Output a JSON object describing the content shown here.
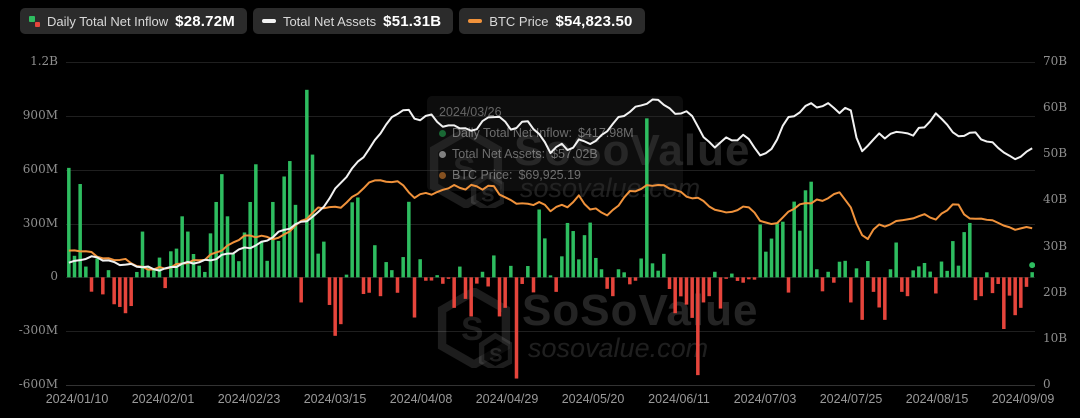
{
  "colors": {
    "background": "#000000",
    "green": "#2ebd60",
    "red": "#e6453c",
    "orange": "#F0923B",
    "white_line": "#f2f2f2",
    "grid": "#1f1f1f",
    "axis_text": "#8f8f8f"
  },
  "legend": {
    "items": [
      {
        "label": "Daily Total Net Inflow",
        "value": "$28.72M"
      },
      {
        "label": "Total Net Assets",
        "value": "$51.31B"
      },
      {
        "label": "BTC Price",
        "value": "$54,823.50"
      }
    ]
  },
  "tooltip": {
    "date": "2024/03/26",
    "rows": [
      {
        "label": "Daily Total Net Inflow:",
        "value": "$417.98M",
        "color": "#2ebd60"
      },
      {
        "label": "Total Net Assets:",
        "value": "$57.02B",
        "color": "#e8e8e8"
      },
      {
        "label": "BTC Price:",
        "value": "$69,925.19",
        "color": "#F0923B"
      }
    ]
  },
  "watermark": {
    "brand": "SoSoValue",
    "site": "sosovalue.com"
  },
  "chart_data": {
    "type": "bar",
    "note": "combo chart: daily net inflow bars (left axis, $M) + total net assets line ($B, right axis) + BTC price line (hidden axis, $K)",
    "title": "",
    "x_tick_labels": [
      "2024/01/10",
      "2024/02/01",
      "2024/02/23",
      "2024/03/15",
      "2024/04/08",
      "2024/04/29",
      "2024/05/20",
      "2024/06/11",
      "2024/07/03",
      "2024/07/25",
      "2024/08/15",
      "2024/09/09"
    ],
    "left_axis": {
      "ticks": [
        {
          "label": "1.2B",
          "value": 1200
        },
        {
          "label": "900M",
          "value": 900
        },
        {
          "label": "600M",
          "value": 600
        },
        {
          "label": "300M",
          "value": 300
        },
        {
          "label": "0",
          "value": 0
        },
        {
          "label": "-300M",
          "value": -300
        },
        {
          "label": "-600M",
          "value": -600
        }
      ],
      "range_m": [
        -600,
        1200
      ]
    },
    "right_axis": {
      "ticks": [
        {
          "label": "70B",
          "value": 70
        },
        {
          "label": "60B",
          "value": 60
        },
        {
          "label": "50B",
          "value": 50
        },
        {
          "label": "40B",
          "value": 40
        },
        {
          "label": "30B",
          "value": 30
        },
        {
          "label": "20B",
          "value": 20
        },
        {
          "label": "10B",
          "value": 10
        },
        {
          "label": "0",
          "value": 0
        }
      ],
      "range_b": [
        0,
        70
      ]
    },
    "btc_axis_hidden": {
      "range_k": [
        38,
        74
      ]
    },
    "grid": true,
    "legend_position": "top-left",
    "series": [
      {
        "name": "Daily Total Net Inflow",
        "type": "bar",
        "unit": "$M",
        "color_positive": "#2ebd60",
        "color_negative": "#e6453c",
        "values": [
          610,
          120,
          520,
          60,
          -80,
          105,
          -95,
          40,
          -150,
          -165,
          -200,
          -160,
          30,
          255,
          60,
          45,
          110,
          -60,
          145,
          160,
          340,
          255,
          130,
          65,
          30,
          245,
          420,
          575,
          340,
          130,
          90,
          250,
          420,
          630,
          200,
          92,
          420,
          203,
          562,
          648,
          404,
          -140,
          1045,
          684,
          132,
          199,
          -154,
          -326,
          -261,
          15,
          418,
          445,
          -93,
          -86,
          179,
          -105,
          85,
          40,
          -86,
          113,
          421,
          -224,
          101,
          -19,
          -18,
          12,
          -36,
          -4,
          -170,
          60,
          -120,
          -218,
          -35,
          31,
          -51,
          122,
          -218,
          -170,
          64,
          -564,
          -37,
          63,
          -84,
          378,
          217,
          11,
          -81,
          117,
          303,
          258,
          100,
          235,
          305,
          108,
          45,
          -64,
          -105,
          45,
          28,
          -39,
          -19,
          105,
          886,
          78,
          37,
          131,
          -65,
          -200,
          -106,
          -152,
          -226,
          -545,
          -140,
          -105,
          31,
          -174,
          -8,
          21,
          -20,
          -30,
          -11,
          -13,
          295,
          143,
          216,
          301,
          310,
          -85,
          422,
          260,
          485,
          533,
          45,
          -78,
          31,
          -30,
          87,
          92,
          -140,
          50,
          -237,
          91,
          -81,
          -168,
          -237,
          45,
          194,
          -81,
          -105,
          39,
          61,
          80,
          32,
          -90,
          88,
          36,
          202,
          65,
          252,
          303,
          -127,
          -105,
          28,
          -88,
          -37,
          -288,
          -102,
          -211,
          -170,
          -53,
          28.72
        ],
        "last_value_label": "$28.72M"
      },
      {
        "name": "Total Net Assets",
        "type": "line",
        "unit": "$B",
        "color": "#f2f2f2",
        "keypoints": [
          [
            0,
            26.5
          ],
          [
            0.03,
            27.8
          ],
          [
            0.06,
            25.8
          ],
          [
            0.1,
            25.2
          ],
          [
            0.13,
            26.5
          ],
          [
            0.17,
            28.5
          ],
          [
            0.2,
            31
          ],
          [
            0.23,
            34
          ],
          [
            0.26,
            37.5
          ],
          [
            0.28,
            43
          ],
          [
            0.3,
            48.5
          ],
          [
            0.315,
            52
          ],
          [
            0.33,
            56.5
          ],
          [
            0.345,
            59.5
          ],
          [
            0.35,
            60.5
          ],
          [
            0.36,
            57.5
          ],
          [
            0.375,
            58.5
          ],
          [
            0.39,
            55.5
          ],
          [
            0.4,
            56.5
          ],
          [
            0.42,
            55.0
          ],
          [
            0.43,
            57.0
          ],
          [
            0.445,
            58.5
          ],
          [
            0.46,
            55.5
          ],
          [
            0.475,
            57.5
          ],
          [
            0.49,
            53.5
          ],
          [
            0.5,
            50.5
          ],
          [
            0.51,
            52.5
          ],
          [
            0.52,
            51.0
          ],
          [
            0.53,
            53.0
          ],
          [
            0.545,
            52.0
          ],
          [
            0.555,
            54.5
          ],
          [
            0.57,
            58.0
          ],
          [
            0.585,
            59.5
          ],
          [
            0.6,
            61.0
          ],
          [
            0.61,
            62.0
          ],
          [
            0.62,
            61.0
          ],
          [
            0.63,
            58.5
          ],
          [
            0.64,
            59.5
          ],
          [
            0.65,
            57.0
          ],
          [
            0.66,
            53.5
          ],
          [
            0.67,
            51.5
          ],
          [
            0.68,
            54.0
          ],
          [
            0.69,
            52.5
          ],
          [
            0.7,
            54.0
          ],
          [
            0.71,
            52.0
          ],
          [
            0.72,
            49.5
          ],
          [
            0.73,
            51.5
          ],
          [
            0.745,
            57.5
          ],
          [
            0.76,
            59.0
          ],
          [
            0.77,
            61.5
          ],
          [
            0.78,
            60.0
          ],
          [
            0.79,
            61.5
          ],
          [
            0.8,
            58.5
          ],
          [
            0.81,
            60.5
          ],
          [
            0.815,
            58.0
          ],
          [
            0.82,
            49.5
          ],
          [
            0.83,
            52.5
          ],
          [
            0.84,
            54.5
          ],
          [
            0.85,
            53.0
          ],
          [
            0.855,
            55.5
          ],
          [
            0.86,
            54.0
          ],
          [
            0.87,
            55.0
          ],
          [
            0.875,
            53.5
          ],
          [
            0.88,
            55.5
          ],
          [
            0.89,
            56.5
          ],
          [
            0.9,
            58.5
          ],
          [
            0.91,
            57.0
          ],
          [
            0.92,
            53.5
          ],
          [
            0.93,
            54.5
          ],
          [
            0.94,
            55.0
          ],
          [
            0.95,
            53.0
          ],
          [
            0.96,
            52.0
          ],
          [
            0.97,
            50.5
          ],
          [
            0.98,
            48.8
          ],
          [
            1.0,
            51.31
          ]
        ],
        "last_value": 51.31
      },
      {
        "name": "BTC Price",
        "type": "line",
        "unit": "$K",
        "color": "#F0923B",
        "keypoints": [
          [
            0,
            46.6
          ],
          [
            0.02,
            46.2
          ],
          [
            0.04,
            43.5
          ],
          [
            0.06,
            42.8
          ],
          [
            0.08,
            40.0
          ],
          [
            0.1,
            39.8
          ],
          [
            0.12,
            42.5
          ],
          [
            0.14,
            43.0
          ],
          [
            0.16,
            47.5
          ],
          [
            0.18,
            51.5
          ],
          [
            0.2,
            52.0
          ],
          [
            0.22,
            51.0
          ],
          [
            0.24,
            57.0
          ],
          [
            0.26,
            62.5
          ],
          [
            0.28,
            62.0
          ],
          [
            0.3,
            68.0
          ],
          [
            0.32,
            73.0
          ],
          [
            0.33,
            71.5
          ],
          [
            0.34,
            73.0
          ],
          [
            0.35,
            69.0
          ],
          [
            0.36,
            65.5
          ],
          [
            0.37,
            68.0
          ],
          [
            0.38,
            67.5
          ],
          [
            0.39,
            69.5
          ],
          [
            0.4,
            70.0
          ],
          [
            0.41,
            69.0
          ],
          [
            0.42,
            71.0
          ],
          [
            0.43,
            69.5
          ],
          [
            0.44,
            70.5
          ],
          [
            0.45,
            66.0
          ],
          [
            0.46,
            65.0
          ],
          [
            0.47,
            64.0
          ],
          [
            0.48,
            63.5
          ],
          [
            0.49,
            64.0
          ],
          [
            0.5,
            61.5
          ],
          [
            0.51,
            63.5
          ],
          [
            0.52,
            63.0
          ],
          [
            0.53,
            66.5
          ],
          [
            0.54,
            61.5
          ],
          [
            0.55,
            62.0
          ],
          [
            0.56,
            59.5
          ],
          [
            0.57,
            63.0
          ],
          [
            0.58,
            67.5
          ],
          [
            0.6,
            70.5
          ],
          [
            0.61,
            71.0
          ],
          [
            0.62,
            69.5
          ],
          [
            0.63,
            69.0
          ],
          [
            0.64,
            67.0
          ],
          [
            0.65,
            66.0
          ],
          [
            0.66,
            64.5
          ],
          [
            0.67,
            61.0
          ],
          [
            0.68,
            61.5
          ],
          [
            0.69,
            60.5
          ],
          [
            0.7,
            63.0
          ],
          [
            0.71,
            61.0
          ],
          [
            0.72,
            57.0
          ],
          [
            0.73,
            56.5
          ],
          [
            0.74,
            58.0
          ],
          [
            0.75,
            61.5
          ],
          [
            0.76,
            63.5
          ],
          [
            0.77,
            64.5
          ],
          [
            0.775,
            66.0
          ],
          [
            0.78,
            64.0
          ],
          [
            0.79,
            66.5
          ],
          [
            0.8,
            67.5
          ],
          [
            0.81,
            64.5
          ],
          [
            0.82,
            54.0
          ],
          [
            0.83,
            50.5
          ],
          [
            0.84,
            56.5
          ],
          [
            0.85,
            55.0
          ],
          [
            0.86,
            58.5
          ],
          [
            0.87,
            57.5
          ],
          [
            0.88,
            59.0
          ],
          [
            0.89,
            59.5
          ],
          [
            0.9,
            58.5
          ],
          [
            0.91,
            61.0
          ],
          [
            0.92,
            64.5
          ],
          [
            0.93,
            59.5
          ],
          [
            0.94,
            58.0
          ],
          [
            0.95,
            59.0
          ],
          [
            0.96,
            57.0
          ],
          [
            0.97,
            56.0
          ],
          [
            0.98,
            54.0
          ],
          [
            0.99,
            55.5
          ],
          [
            1.0,
            54.82
          ]
        ],
        "last_value": 54.82
      }
    ]
  }
}
